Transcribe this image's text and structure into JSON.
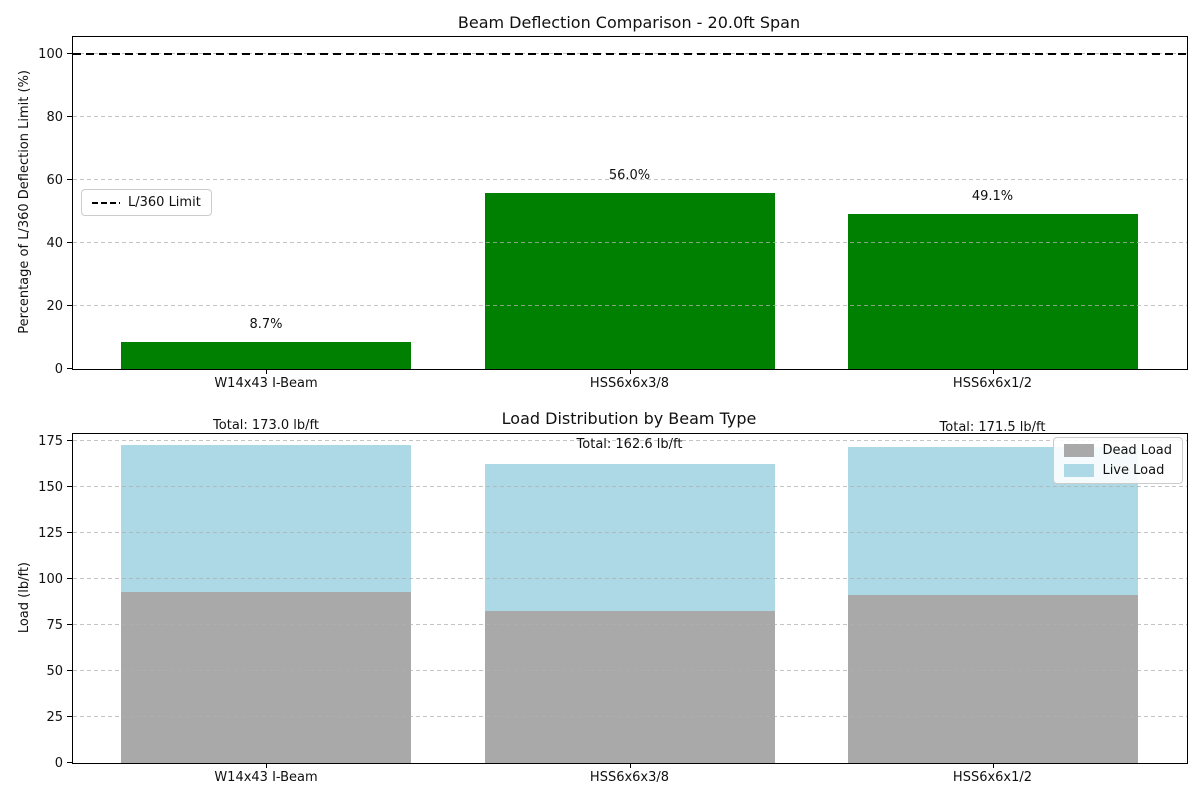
{
  "figure": {
    "background": "#ffffff",
    "grid_color": "#b0b0b0",
    "spine_color": "#000000"
  },
  "chart_data": [
    {
      "type": "bar",
      "title": "Beam Deflection Comparison - 20.0ft Span",
      "ylabel": "Percentage of L/360 Deflection Limit (%)",
      "categories": [
        "W14x43 I-Beam",
        "HSS6x6x3/8",
        "HSS6x6x1/2"
      ],
      "values": [
        8.7,
        56.0,
        49.1
      ],
      "value_labels": [
        "8.7%",
        "56.0%",
        "49.1%"
      ],
      "bar_color": "#008000",
      "yticks": [
        0,
        20,
        40,
        60,
        80,
        100
      ],
      "ylim": [
        0,
        105.4
      ],
      "grid": "horizontal-dashed",
      "limit_line": {
        "value": 100,
        "color": "#000000",
        "style": "dashed"
      },
      "legend": {
        "position": "center-left",
        "entries": [
          {
            "label": "L/360 Limit",
            "swatch": "dashed-line",
            "color": "#000000"
          }
        ]
      }
    },
    {
      "type": "stacked-bar",
      "title": "Load Distribution by Beam Type",
      "ylabel": "Load (lb/ft)",
      "categories": [
        "W14x43 I-Beam",
        "HSS6x6x3/8",
        "HSS6x6x1/2"
      ],
      "series": [
        {
          "name": "Dead Load",
          "color": "#a9a9a9",
          "values": [
            93.0,
            82.6,
            91.5
          ]
        },
        {
          "name": "Live Load",
          "color": "#add8e6",
          "values": [
            80.0,
            80.0,
            80.0
          ]
        }
      ],
      "totals": [
        173.0,
        162.6,
        171.5
      ],
      "total_labels": [
        "Total: 173.0 lb/ft",
        "Total: 162.6 lb/ft",
        "Total: 171.5 lb/ft"
      ],
      "yticks": [
        0,
        25,
        50,
        75,
        100,
        125,
        150,
        175
      ],
      "ylim": [
        0,
        178.8
      ],
      "grid": "horizontal-dashed",
      "legend": {
        "position": "top-right",
        "entries": [
          {
            "label": "Dead Load",
            "swatch": "patch",
            "color": "#a9a9a9"
          },
          {
            "label": "Live Load",
            "swatch": "patch",
            "color": "#add8e6"
          }
        ]
      }
    }
  ]
}
